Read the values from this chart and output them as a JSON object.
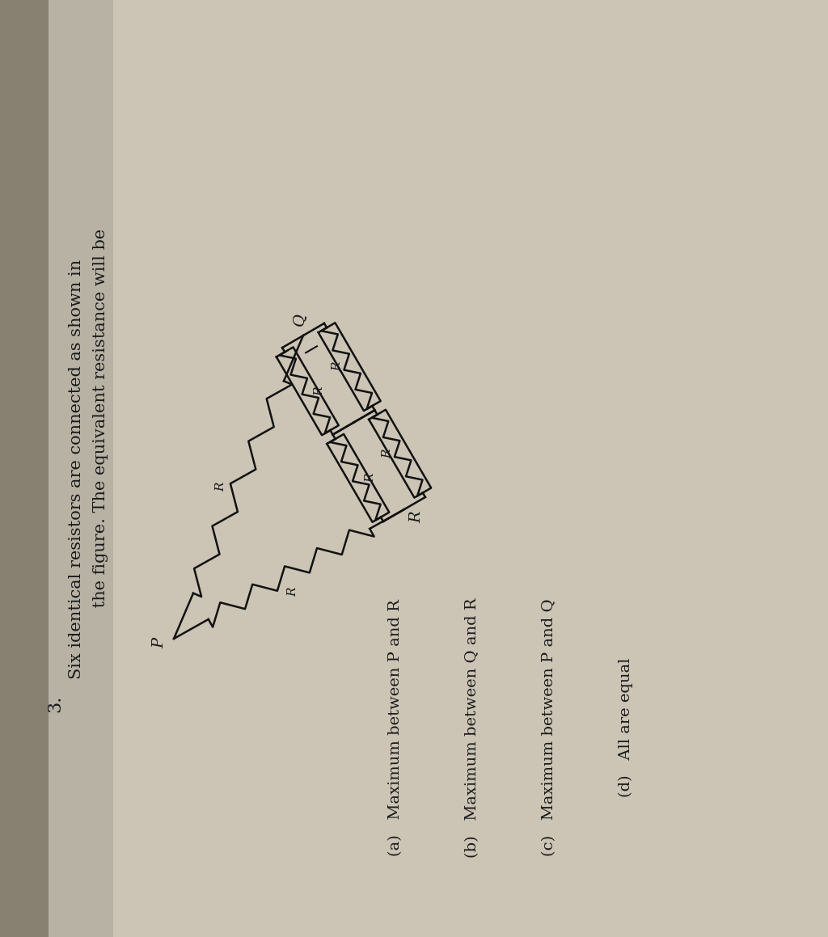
{
  "bg_color_light": "#ccc4b4",
  "bg_color_dark": "#b8b0a0",
  "left_strip_color": "#888070",
  "question_number": "3.",
  "question_line1": "Six identical resistors are connected as shown in",
  "question_line2": "    the figure. The equivalent resistance will be",
  "options": [
    "(a)   Maximum between P and R",
    "(b)   Maximum between Q and R",
    "(c)   Maximum between P and Q",
    "(d)   All are equal"
  ],
  "text_color": "#1a1a1a",
  "circuit_color": "#111111",
  "fig_width": 10.24,
  "fig_height": 11.59,
  "dpi": 100
}
